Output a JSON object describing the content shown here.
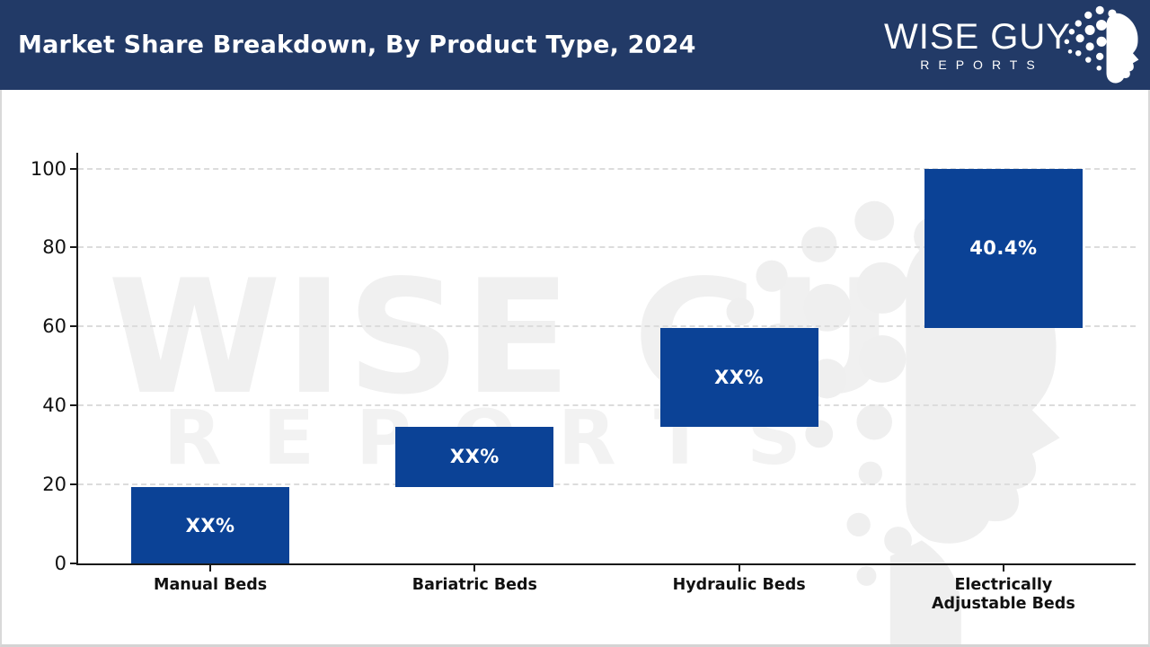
{
  "header": {
    "title": "Market Share Breakdown, By Product Type, 2024",
    "bg_color": "#223A67",
    "logo": {
      "line1": "WISE GUY",
      "line2": "REPORTS"
    }
  },
  "watermark": {
    "line1": "WISE GUY",
    "line2": "REPORTS"
  },
  "chart_data": {
    "type": "bar",
    "variant": "floating-waterfall",
    "title": "Market Share Breakdown, By Product Type, 2024",
    "categories": [
      "Manual Beds",
      "Bariatric Beds",
      "Hydraulic Beds",
      "Electrically Adjustable Beds"
    ],
    "segments": [
      {
        "category_lines": [
          "Manual Beds"
        ],
        "start": 0,
        "end": 19.3,
        "value_label": "XX%"
      },
      {
        "category_lines": [
          "Bariatric Beds"
        ],
        "start": 19.3,
        "end": 34.7,
        "value_label": "XX%"
      },
      {
        "category_lines": [
          "Hydraulic Beds"
        ],
        "start": 34.7,
        "end": 59.6,
        "value_label": "XX%"
      },
      {
        "category_lines": [
          "Electrically",
          "Adjustable Beds"
        ],
        "start": 59.6,
        "end": 100,
        "value_label": "40.4%"
      }
    ],
    "y_ticks": [
      0,
      20,
      40,
      60,
      80,
      100
    ],
    "ylim": [
      0,
      104
    ],
    "xlabel": "",
    "ylabel": "",
    "legend": "none",
    "grid": {
      "axis": "y",
      "style": "dashed",
      "color": "#dcdcdc"
    },
    "bar_color": "#0B4296",
    "bar_label_color": "#ffffff",
    "axis_color": "#1a1a1a"
  }
}
